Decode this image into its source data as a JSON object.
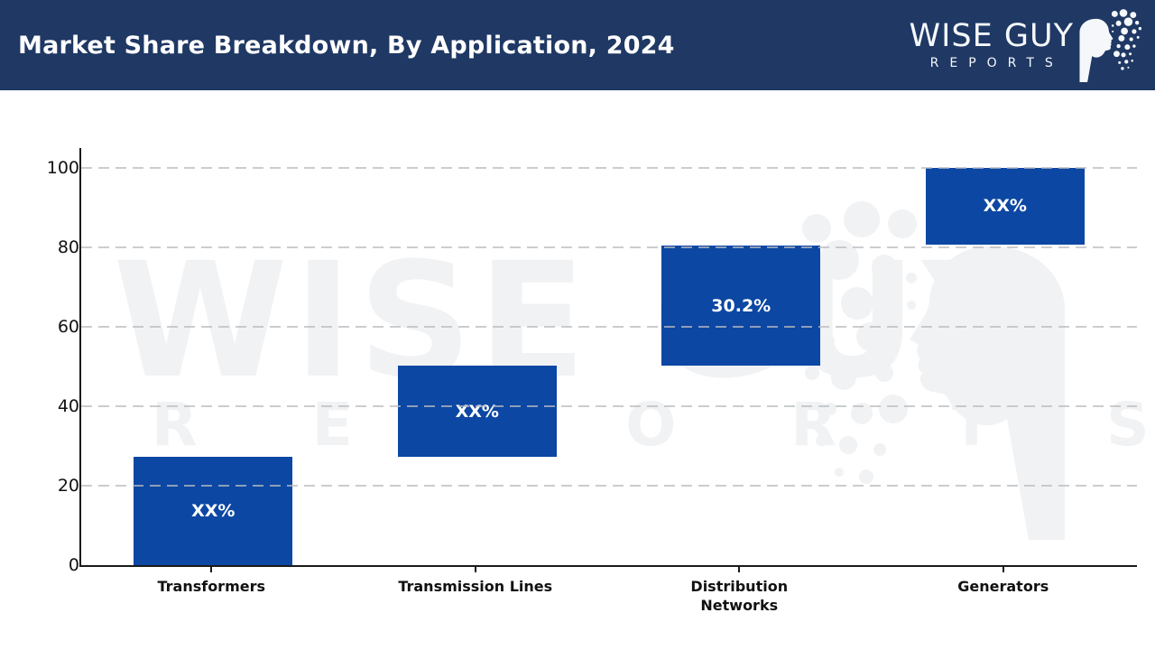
{
  "header": {
    "title": "Market Share Breakdown, By Application, 2024",
    "logo_line1": "WISE GUY",
    "logo_line2": "REPORTS"
  },
  "watermark": {
    "line1": "WISE GUY",
    "line2": "R E P O R T S"
  },
  "colors": {
    "header_bg": "#1f3864",
    "bar_fill": "#0c47a3",
    "bar_label": "#ffffff",
    "gridline": "#babcc0",
    "axis": "#1a1a1a",
    "watermark": "#f1f2f4",
    "text": "#111111"
  },
  "chart_data": {
    "type": "bar",
    "subtype": "waterfall-floating-bars",
    "title": "Market Share Breakdown, By Application, 2024",
    "categories": [
      "Transformers",
      "Transmission Lines",
      "Distribution Networks",
      "Generators"
    ],
    "category_display": [
      "Transformers",
      "Transmission Lines",
      "Distribution\nNetworks",
      "Generators"
    ],
    "segments": [
      {
        "category": "Transformers",
        "from": 0,
        "to": 27.3,
        "label": "XX%"
      },
      {
        "category": "Transmission Lines",
        "from": 27.3,
        "to": 50.2,
        "label": "XX%"
      },
      {
        "category": "Distribution Networks",
        "from": 50.2,
        "to": 80.4,
        "label": "30.2%"
      },
      {
        "category": "Generators",
        "from": 80.7,
        "to": 100,
        "label": "XX%"
      }
    ],
    "xlabel": "",
    "ylabel": "",
    "ylim": [
      0,
      105
    ],
    "yticks": [
      0,
      20,
      40,
      60,
      80,
      100
    ],
    "grid": "horizontal-dashed, drawn above bars",
    "legend": "none"
  }
}
